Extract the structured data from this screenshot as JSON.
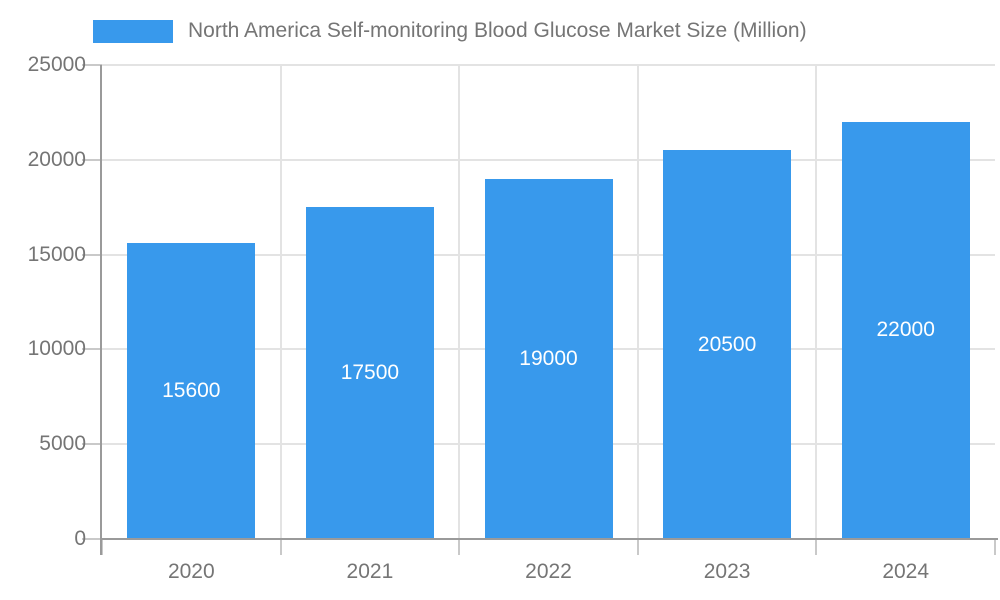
{
  "chart_data": {
    "type": "bar",
    "title": "North America Self-monitoring Blood Glucose Market Size (Million)",
    "categories": [
      "2020",
      "2021",
      "2022",
      "2023",
      "2024"
    ],
    "values": [
      15600,
      17500,
      19000,
      20500,
      22000
    ],
    "xlabel": "",
    "ylabel": "",
    "ylim": [
      0,
      25000
    ],
    "yticks": [
      0,
      5000,
      10000,
      15000,
      20000,
      25000
    ],
    "grid": true,
    "legend_position": "top",
    "bar_labels_inside": true,
    "colors": {
      "bar": "#3899EC",
      "bar_label": "#FFFFFF",
      "axis_text": "#757575",
      "legend_text": "#757575",
      "gridline": "#E3E3E3",
      "tick": "#C9C9C9",
      "axis_line": "#9A9A9A",
      "background": "#FFFFFF"
    }
  }
}
